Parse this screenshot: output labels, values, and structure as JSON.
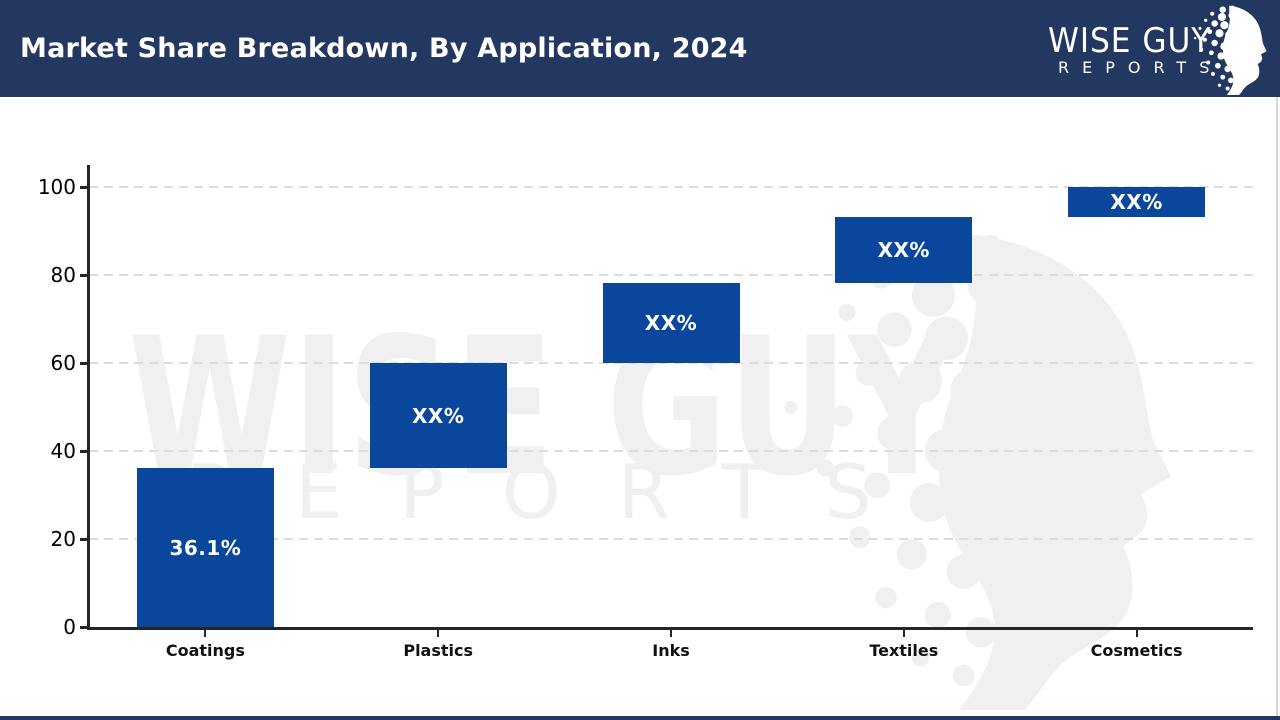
{
  "header": {
    "title": "Market Share Breakdown, By Application, 2024",
    "brand": {
      "line1": "WISE GUY",
      "line2": "REPORTS"
    }
  },
  "watermark": {
    "line1": "WISE GUY",
    "line2": "REPORTS"
  },
  "colors": {
    "band_navy": "#233860",
    "bar_blue": "#0a479c",
    "gridline": "#dcdcdc",
    "axis": "#262626",
    "bar_label_white": "#ffffff",
    "watermark_gray": "#f0f0f0"
  },
  "chart_data": {
    "type": "bar",
    "subtype": "floating-segment-waterfall",
    "title": "Market Share Breakdown, By Application, 2024",
    "categories": [
      "Coatings",
      "Plastics",
      "Inks",
      "Textiles",
      "Cosmetics"
    ],
    "bars": [
      {
        "category": "Coatings",
        "start": 0,
        "end": 36.1,
        "label": "36.1%"
      },
      {
        "category": "Plastics",
        "start": 36.1,
        "end": 60.0,
        "label": "XX%"
      },
      {
        "category": "Inks",
        "start": 60.0,
        "end": 78.1,
        "label": "XX%"
      },
      {
        "category": "Textiles",
        "start": 78.1,
        "end": 93.1,
        "label": "XX%"
      },
      {
        "category": "Cosmetics",
        "start": 93.1,
        "end": 100.0,
        "label": "XX%"
      }
    ],
    "yticks": [
      0,
      20,
      40,
      60,
      80,
      100
    ],
    "ytick_labels": [
      "0",
      "20",
      "40",
      "60",
      "80",
      "100"
    ],
    "ylim": [
      0,
      105
    ],
    "xlabel": "",
    "ylabel": "",
    "grid": "horizontal dashed",
    "legend": "none",
    "bar_color": "#0a479c"
  }
}
